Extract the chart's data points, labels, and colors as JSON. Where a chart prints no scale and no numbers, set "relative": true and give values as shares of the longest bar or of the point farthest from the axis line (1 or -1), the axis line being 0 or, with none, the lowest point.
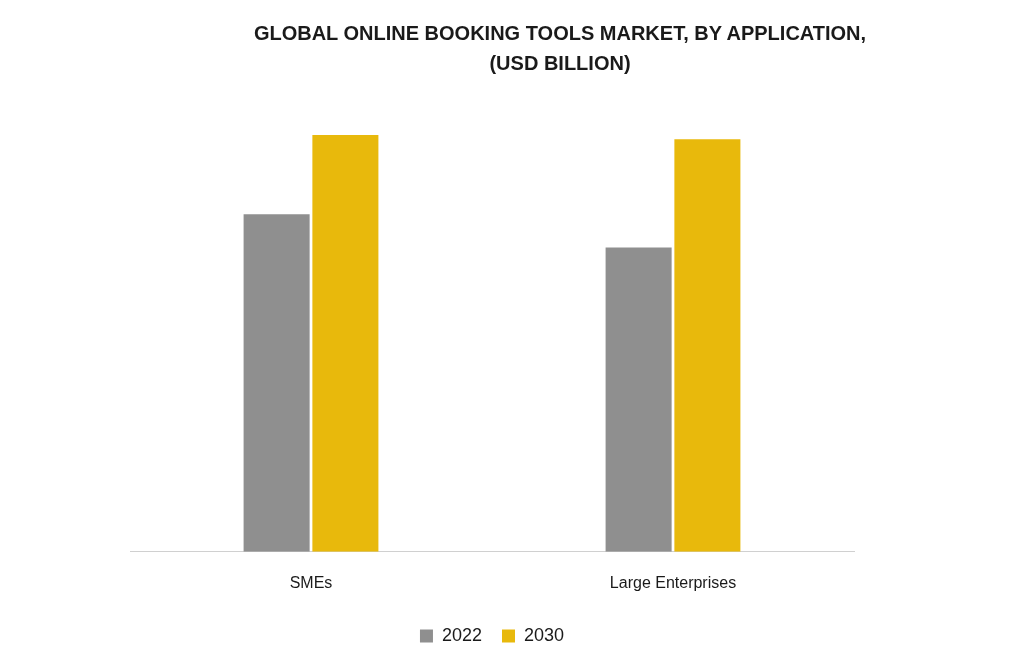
{
  "chart_data": {
    "type": "bar",
    "title": "GLOBAL ONLINE BOOKING TOOLS MARKET, BY APPLICATION, (USD BILLION)",
    "categories": [
      "SMEs",
      "Large Enterprises"
    ],
    "series": [
      {
        "name": "2022",
        "color": "#8f8f8f",
        "values": [
          0.81,
          0.73
        ]
      },
      {
        "name": "2030",
        "color": "#e8b90c",
        "values": [
          1,
          0.99
        ]
      }
    ],
    "relative": true,
    "legend": "bottom"
  }
}
